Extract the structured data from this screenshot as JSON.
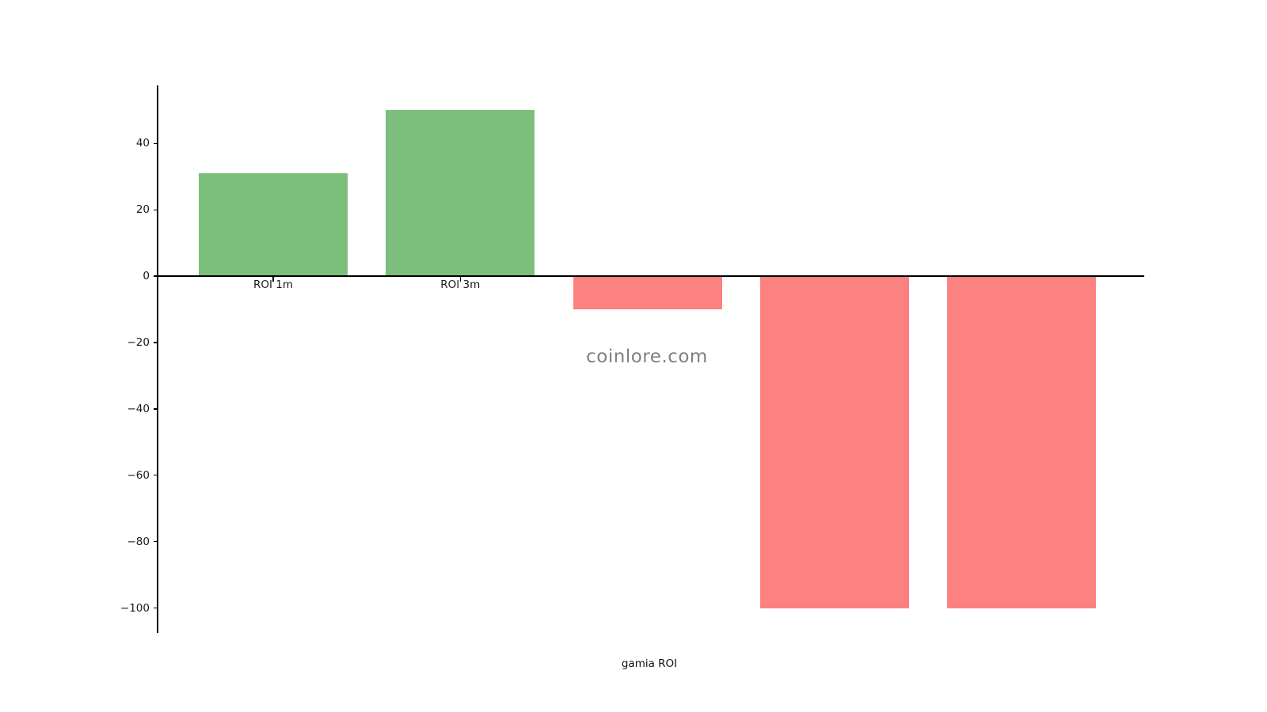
{
  "chart_data": {
    "type": "bar",
    "title": "",
    "xlabel": "gamia ROI",
    "ylabel": "",
    "watermark": "coinlore.com",
    "categories": [
      "ROI 1m",
      "ROI 3m",
      "",
      "",
      ""
    ],
    "values": [
      31,
      50,
      -10,
      -100,
      -100
    ],
    "bar_colors": [
      "#7cbe7c",
      "#7cbe7c",
      "#fc8181",
      "#fc8181",
      "#fc8181"
    ],
    "positive_color": "#7cbe7c",
    "negative_color": "#fc8181",
    "yticks": [
      {
        "value": 40,
        "label": "40"
      },
      {
        "value": 20,
        "label": "20"
      },
      {
        "value": 0,
        "label": "0"
      },
      {
        "value": -20,
        "label": "−20"
      },
      {
        "value": -40,
        "label": "−40"
      },
      {
        "value": -60,
        "label": "−60"
      },
      {
        "value": -80,
        "label": "−80"
      },
      {
        "value": -100,
        "label": "−100"
      }
    ],
    "ylim": [
      -107.5,
      57.5
    ],
    "grid": false,
    "legend": false,
    "axis_color": "#000000",
    "tick_text_color": "#1a1a1a",
    "watermark_color": "#7f7f7f",
    "background_color": "#ffffff",
    "notes": "x tick labels of the three negative bars are hidden behind the bars"
  }
}
